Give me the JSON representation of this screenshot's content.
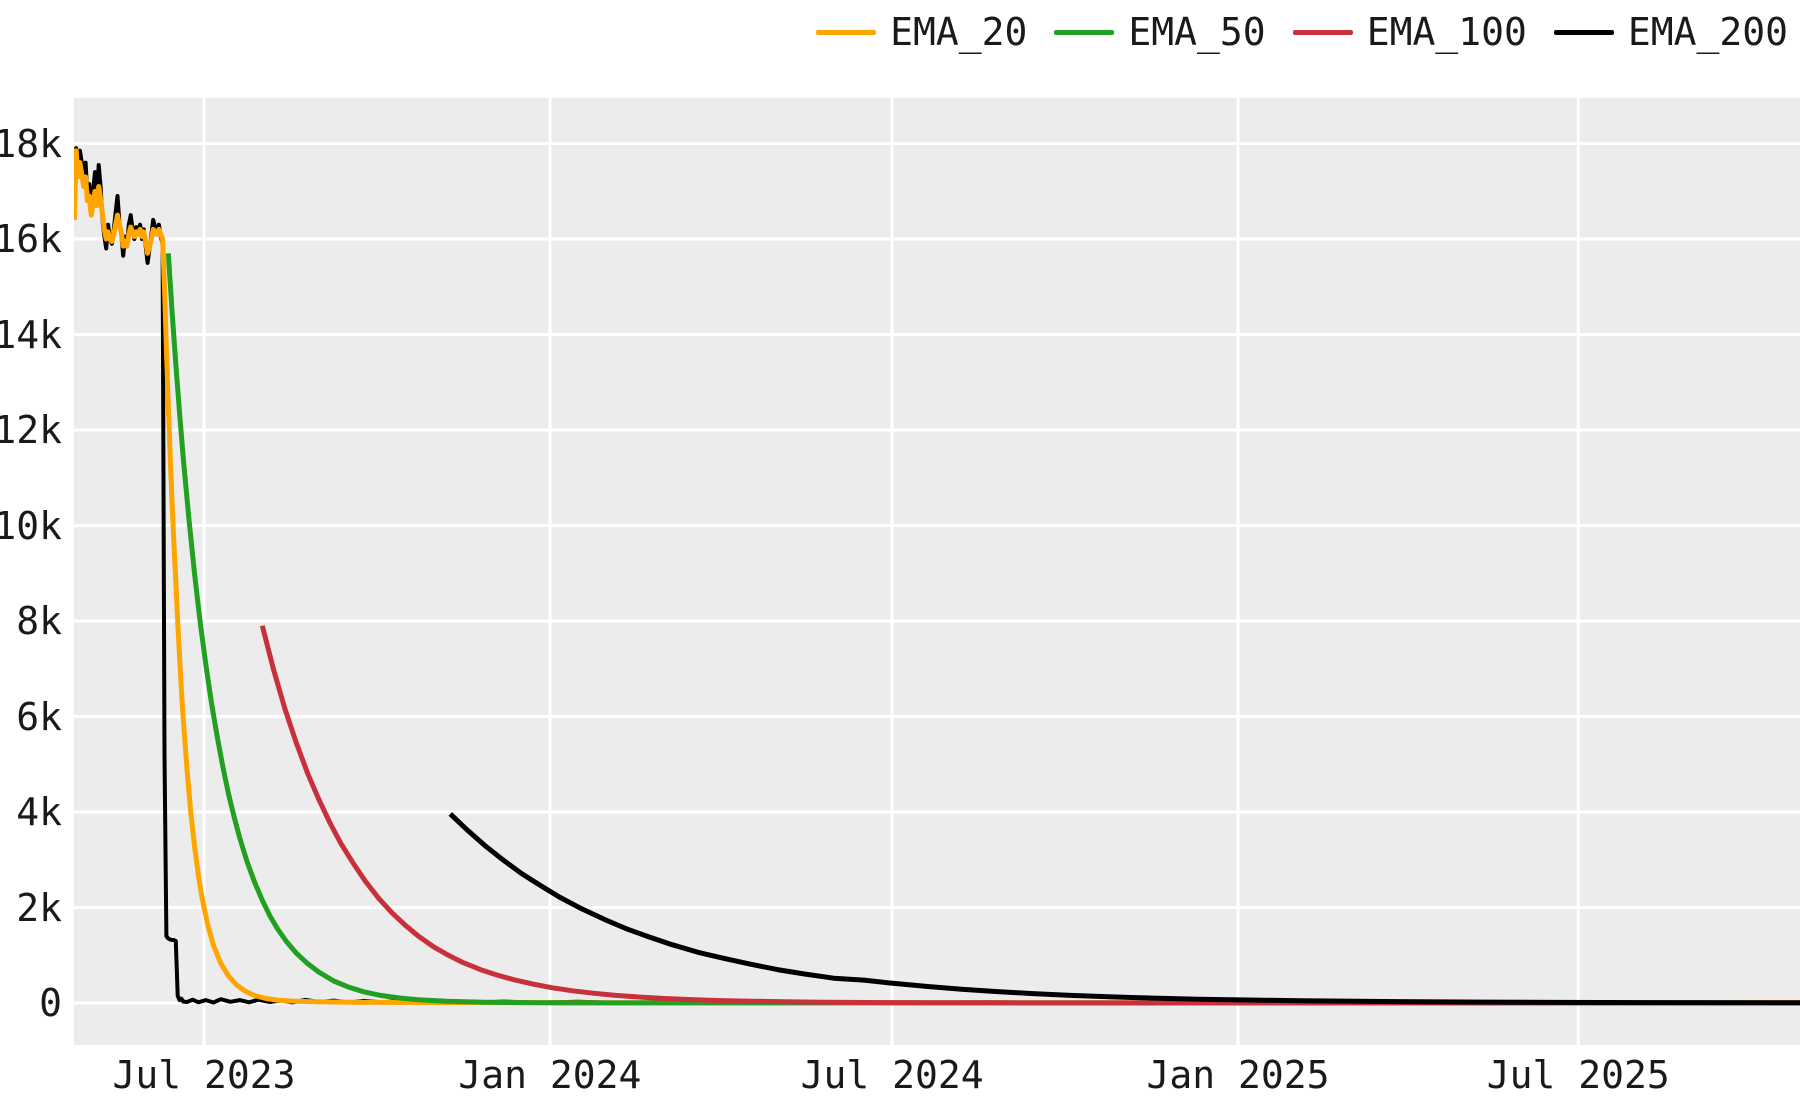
{
  "figure": {
    "background": "#ffffff",
    "plot_background": "#ececec",
    "grid_color": "#ffffff",
    "tick_color": "#1a1a1a"
  },
  "legend": {
    "items": [
      {
        "label": "EMA_20",
        "color": "#ffa500"
      },
      {
        "label": "EMA_50",
        "color": "#22a022"
      },
      {
        "label": "EMA_100",
        "color": "#c8303c"
      },
      {
        "label": "EMA_200",
        "color": "#000000"
      }
    ]
  },
  "chart_data": {
    "type": "line",
    "title": "",
    "xlabel": "",
    "ylabel": "",
    "x_unit": "days since 2023-01-01",
    "xlim": [
      112,
      1030
    ],
    "ylim": [
      -880,
      18950
    ],
    "grid": true,
    "legend_position": "top-right",
    "x_ticks": [
      {
        "label": "Jul 2023",
        "day": 181
      },
      {
        "label": "Jan 2024",
        "day": 365
      },
      {
        "label": "Jul 2024",
        "day": 547
      },
      {
        "label": "Jan 2025",
        "day": 731
      },
      {
        "label": "Jul 2025",
        "day": 912
      }
    ],
    "y_ticks": [
      {
        "label": "0",
        "value": 0
      },
      {
        "label": "2k",
        "value": 2000
      },
      {
        "label": "4k",
        "value": 4000
      },
      {
        "label": "6k",
        "value": 6000
      },
      {
        "label": "8k",
        "value": 8000
      },
      {
        "label": "10k",
        "value": 10000
      },
      {
        "label": "12k",
        "value": 12000
      },
      {
        "label": "14k",
        "value": 14000
      },
      {
        "label": "16k",
        "value": 16000
      },
      {
        "label": "18k",
        "value": 18000
      }
    ],
    "series": [
      {
        "id": "price",
        "label": "",
        "in_legend": false,
        "color": "#000000",
        "width": 4,
        "points": [
          [
            112,
            17300
          ],
          [
            113,
            17900
          ],
          [
            114,
            17500
          ],
          [
            115,
            17850
          ],
          [
            116,
            17600
          ],
          [
            117,
            17250
          ],
          [
            118,
            17600
          ],
          [
            119,
            16900
          ],
          [
            120,
            17150
          ],
          [
            121,
            16600
          ],
          [
            122,
            17000
          ],
          [
            123,
            17400
          ],
          [
            124,
            16850
          ],
          [
            125,
            17550
          ],
          [
            126,
            17100
          ],
          [
            127,
            16400
          ],
          [
            128,
            16050
          ],
          [
            129,
            15800
          ],
          [
            130,
            16300
          ],
          [
            131,
            16000
          ],
          [
            132,
            15900
          ],
          [
            133,
            16200
          ],
          [
            134,
            16550
          ],
          [
            135,
            16900
          ],
          [
            136,
            16350
          ],
          [
            137,
            16100
          ],
          [
            138,
            15650
          ],
          [
            139,
            16050
          ],
          [
            140,
            15850
          ],
          [
            141,
            16300
          ],
          [
            142,
            16500
          ],
          [
            143,
            16200
          ],
          [
            144,
            16000
          ],
          [
            145,
            16250
          ],
          [
            146,
            16100
          ],
          [
            147,
            16300
          ],
          [
            148,
            16000
          ],
          [
            149,
            16200
          ],
          [
            150,
            15850
          ],
          [
            151,
            15500
          ],
          [
            152,
            15800
          ],
          [
            153,
            16100
          ],
          [
            154,
            16400
          ],
          [
            155,
            16250
          ],
          [
            156,
            16100
          ],
          [
            157,
            16300
          ],
          [
            158,
            16050
          ],
          [
            159,
            15900
          ],
          [
            160,
            5200
          ],
          [
            161,
            1400
          ],
          [
            162,
            1350
          ],
          [
            163,
            1330
          ],
          [
            164,
            1320
          ],
          [
            165,
            1320
          ],
          [
            166,
            1300
          ],
          [
            167,
            150
          ],
          [
            168,
            60
          ],
          [
            169,
            90
          ],
          [
            170,
            30
          ],
          [
            172,
            20
          ],
          [
            175,
            70
          ],
          [
            178,
            15
          ],
          [
            182,
            60
          ],
          [
            186,
            10
          ],
          [
            190,
            80
          ],
          [
            195,
            25
          ],
          [
            200,
            60
          ],
          [
            205,
            15
          ],
          [
            210,
            70
          ],
          [
            216,
            20
          ],
          [
            222,
            55
          ],
          [
            228,
            12
          ],
          [
            235,
            65
          ],
          [
            242,
            18
          ],
          [
            250,
            50
          ],
          [
            258,
            10
          ],
          [
            266,
            45
          ],
          [
            275,
            15
          ],
          [
            285,
            40
          ],
          [
            295,
            10
          ],
          [
            310,
            35
          ],
          [
            325,
            8
          ],
          [
            340,
            30
          ],
          [
            360,
            8
          ],
          [
            380,
            25
          ],
          [
            400,
            6
          ],
          [
            430,
            20
          ],
          [
            460,
            5
          ],
          [
            500,
            15
          ],
          [
            550,
            5
          ],
          [
            600,
            12
          ],
          [
            660,
            4
          ],
          [
            720,
            10
          ],
          [
            800,
            3
          ],
          [
            900,
            6
          ],
          [
            1030,
            3
          ]
        ]
      },
      {
        "id": "ema_20",
        "label": "EMA_20",
        "in_legend": true,
        "color": "#ffa500",
        "width": 5,
        "points": [
          [
            112,
            16400
          ],
          [
            113,
            17850
          ],
          [
            114,
            17300
          ],
          [
            115,
            17600
          ],
          [
            116,
            17350
          ],
          [
            117,
            17100
          ],
          [
            118,
            17300
          ],
          [
            119,
            16800
          ],
          [
            120,
            16900
          ],
          [
            121,
            16500
          ],
          [
            122,
            16750
          ],
          [
            123,
            17000
          ],
          [
            124,
            16700
          ],
          [
            125,
            17100
          ],
          [
            126,
            16850
          ],
          [
            127,
            16500
          ],
          [
            128,
            16200
          ],
          [
            129,
            16000
          ],
          [
            130,
            16150
          ],
          [
            131,
            16000
          ],
          [
            132,
            15950
          ],
          [
            133,
            16100
          ],
          [
            134,
            16300
          ],
          [
            135,
            16500
          ],
          [
            136,
            16300
          ],
          [
            137,
            16150
          ],
          [
            138,
            15850
          ],
          [
            139,
            15950
          ],
          [
            140,
            15850
          ],
          [
            141,
            16100
          ],
          [
            142,
            16250
          ],
          [
            143,
            16150
          ],
          [
            144,
            16050
          ],
          [
            145,
            16150
          ],
          [
            146,
            16100
          ],
          [
            147,
            16200
          ],
          [
            148,
            16050
          ],
          [
            149,
            16150
          ],
          [
            150,
            15950
          ],
          [
            151,
            15700
          ],
          [
            152,
            15850
          ],
          [
            153,
            16000
          ],
          [
            154,
            16200
          ],
          [
            155,
            16150
          ],
          [
            156,
            16100
          ],
          [
            157,
            16200
          ],
          [
            158,
            16100
          ],
          [
            159,
            16000
          ],
          [
            160,
            14980
          ],
          [
            161,
            13690
          ],
          [
            162,
            12520
          ],
          [
            163,
            11460
          ],
          [
            164,
            10500
          ],
          [
            165,
            9620
          ],
          [
            166,
            8830
          ],
          [
            167,
            8000
          ],
          [
            168,
            7240
          ],
          [
            169,
            6560
          ],
          [
            170,
            5940
          ],
          [
            172,
            4870
          ],
          [
            174,
            3990
          ],
          [
            176,
            3270
          ],
          [
            178,
            2680
          ],
          [
            180,
            2200
          ],
          [
            183,
            1630
          ],
          [
            186,
            1210
          ],
          [
            190,
            830
          ],
          [
            194,
            570
          ],
          [
            198,
            390
          ],
          [
            203,
            245
          ],
          [
            208,
            155
          ],
          [
            214,
            95
          ],
          [
            220,
            60
          ],
          [
            228,
            40
          ],
          [
            240,
            25
          ],
          [
            260,
            16
          ],
          [
            300,
            10
          ],
          [
            400,
            7
          ],
          [
            600,
            5
          ],
          [
            1030,
            4
          ]
        ]
      },
      {
        "id": "ema_50",
        "label": "EMA_50",
        "in_legend": true,
        "color": "#22a022",
        "width": 5,
        "points": [
          [
            162,
            15700
          ],
          [
            164,
            14500
          ],
          [
            166,
            13380
          ],
          [
            168,
            12350
          ],
          [
            170,
            11400
          ],
          [
            173,
            10120
          ],
          [
            176,
            8980
          ],
          [
            179,
            7970
          ],
          [
            182,
            7080
          ],
          [
            185,
            6280
          ],
          [
            188,
            5580
          ],
          [
            191,
            4950
          ],
          [
            194,
            4390
          ],
          [
            197,
            3900
          ],
          [
            200,
            3460
          ],
          [
            204,
            2950
          ],
          [
            208,
            2520
          ],
          [
            212,
            2150
          ],
          [
            216,
            1830
          ],
          [
            220,
            1560
          ],
          [
            225,
            1280
          ],
          [
            230,
            1050
          ],
          [
            236,
            830
          ],
          [
            242,
            650
          ],
          [
            250,
            460
          ],
          [
            258,
            330
          ],
          [
            266,
            235
          ],
          [
            275,
            160
          ],
          [
            285,
            105
          ],
          [
            295,
            70
          ],
          [
            310,
            38
          ],
          [
            330,
            17
          ],
          [
            350,
            8
          ],
          [
            380,
            3
          ],
          [
            420,
            2
          ],
          [
            1030,
            1
          ]
        ]
      },
      {
        "id": "ema_100",
        "label": "EMA_100",
        "in_legend": true,
        "color": "#c8303c",
        "width": 5,
        "points": [
          [
            212,
            7900
          ],
          [
            218,
            6980
          ],
          [
            224,
            6170
          ],
          [
            230,
            5460
          ],
          [
            236,
            4820
          ],
          [
            242,
            4270
          ],
          [
            248,
            3770
          ],
          [
            254,
            3330
          ],
          [
            260,
            2950
          ],
          [
            267,
            2540
          ],
          [
            274,
            2190
          ],
          [
            281,
            1890
          ],
          [
            288,
            1630
          ],
          [
            295,
            1400
          ],
          [
            303,
            1180
          ],
          [
            311,
            1000
          ],
          [
            319,
            845
          ],
          [
            328,
            700
          ],
          [
            337,
            585
          ],
          [
            346,
            485
          ],
          [
            356,
            395
          ],
          [
            366,
            320
          ],
          [
            377,
            255
          ],
          [
            388,
            205
          ],
          [
            400,
            160
          ],
          [
            413,
            123
          ],
          [
            426,
            95
          ],
          [
            440,
            71
          ],
          [
            456,
            51
          ],
          [
            472,
            37
          ],
          [
            490,
            26
          ],
          [
            510,
            17
          ],
          [
            535,
            11
          ],
          [
            565,
            7
          ],
          [
            600,
            4
          ],
          [
            700,
            2
          ],
          [
            1030,
            2
          ]
        ]
      },
      {
        "id": "ema_200",
        "label": "EMA_200",
        "in_legend": true,
        "color": "#000000",
        "width": 5,
        "points": [
          [
            312,
            3960
          ],
          [
            320,
            3660
          ],
          [
            330,
            3310
          ],
          [
            340,
            3000
          ],
          [
            350,
            2710
          ],
          [
            360,
            2460
          ],
          [
            370,
            2220
          ],
          [
            382,
            1970
          ],
          [
            394,
            1750
          ],
          [
            406,
            1550
          ],
          [
            418,
            1380
          ],
          [
            430,
            1220
          ],
          [
            444,
            1060
          ],
          [
            458,
            930
          ],
          [
            472,
            810
          ],
          [
            486,
            700
          ],
          [
            500,
            610
          ],
          [
            516,
            520
          ],
          [
            532,
            480
          ],
          [
            548,
            410
          ],
          [
            566,
            345
          ],
          [
            584,
            290
          ],
          [
            602,
            240
          ],
          [
            622,
            196
          ],
          [
            642,
            160
          ],
          [
            664,
            128
          ],
          [
            686,
            102
          ],
          [
            710,
            80
          ],
          [
            736,
            62
          ],
          [
            764,
            48
          ],
          [
            794,
            35
          ],
          [
            826,
            25
          ],
          [
            862,
            18
          ],
          [
            900,
            12
          ],
          [
            950,
            8
          ],
          [
            1030,
            5
          ]
        ]
      }
    ]
  }
}
